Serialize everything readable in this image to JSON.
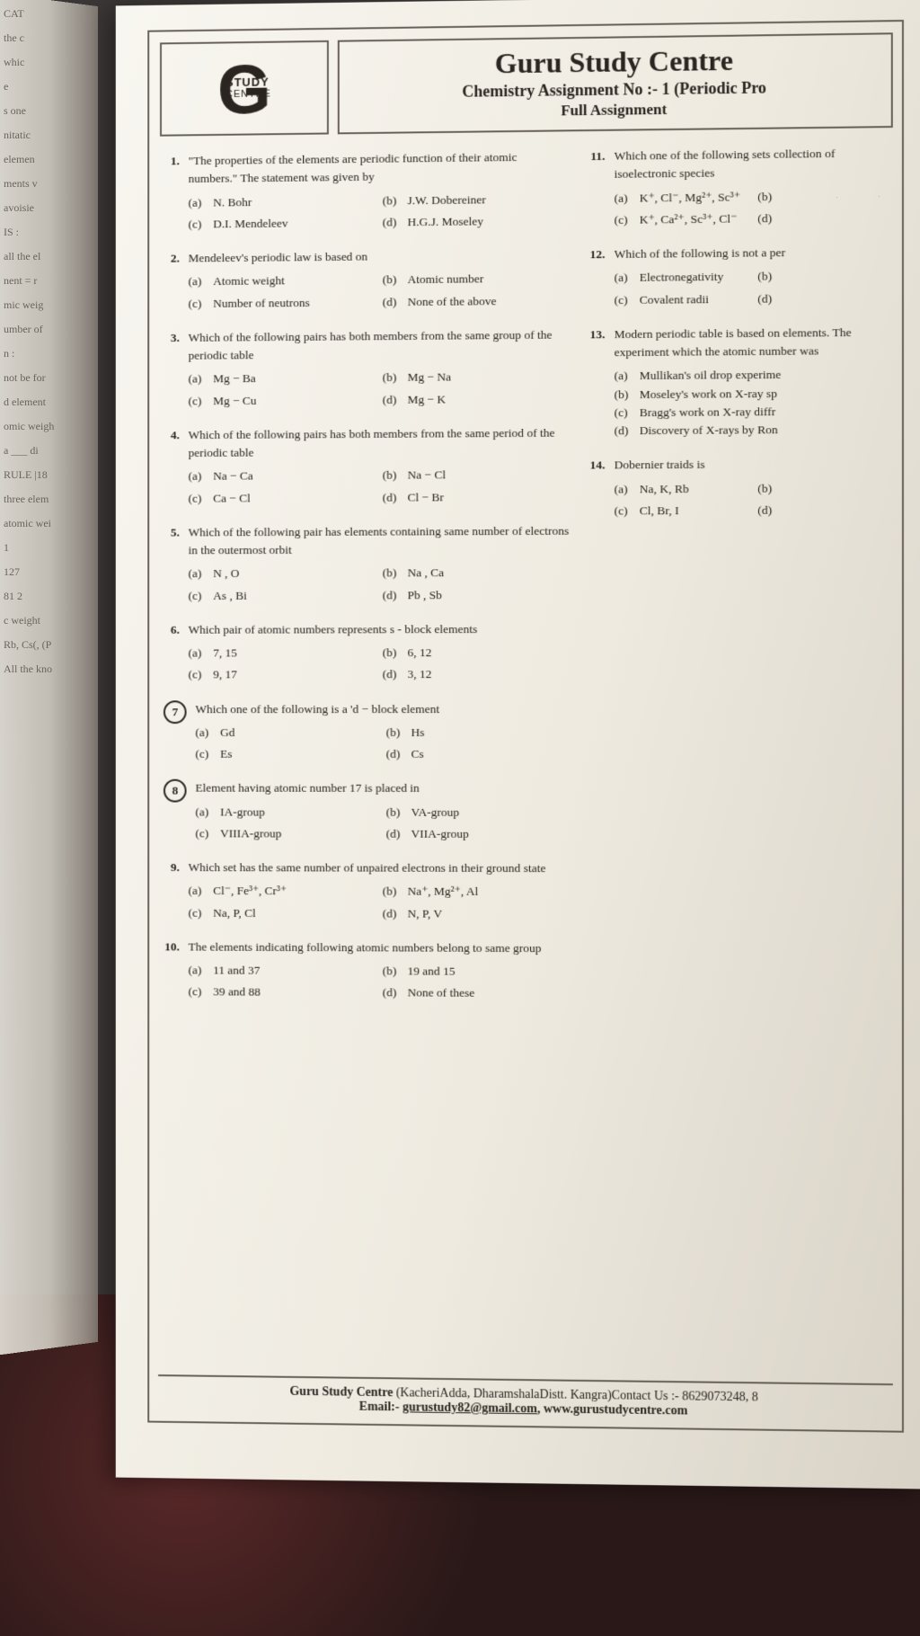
{
  "colors": {
    "paper": "#f8f6f0",
    "border": "#666058",
    "text": "#2a2520",
    "bg_dark": "#3a3635"
  },
  "logo": {
    "letter": "G",
    "line1": "STUDY",
    "line2": "CENTRE"
  },
  "header": {
    "title": "Guru Study Centre",
    "subtitle": "Chemistry Assignment No :- 1 (Periodic Pro",
    "subtitle2": "Full Assignment"
  },
  "left_questions": [
    {
      "n": "1.",
      "text": "\"The properties of the elements are periodic function of their atomic numbers.\" The statement was given by",
      "opts": [
        {
          "l": "(a)",
          "t": "N. Bohr"
        },
        {
          "l": "(b)",
          "t": "J.W. Dobereiner"
        },
        {
          "l": "(c)",
          "t": "D.I. Mendeleev"
        },
        {
          "l": "(d)",
          "t": "H.G.J. Moseley"
        }
      ]
    },
    {
      "n": "2.",
      "text": "Mendeleev's periodic law is based on",
      "opts": [
        {
          "l": "(a)",
          "t": "Atomic weight"
        },
        {
          "l": "(b)",
          "t": "Atomic number"
        },
        {
          "l": "(c)",
          "t": "Number of neutrons"
        },
        {
          "l": "(d)",
          "t": "None of the above"
        }
      ]
    },
    {
      "n": "3.",
      "text": "Which of the following pairs has both members from the same group of the periodic table",
      "opts": [
        {
          "l": "(a)",
          "t": "Mg − Ba"
        },
        {
          "l": "(b)",
          "t": "Mg − Na"
        },
        {
          "l": "(c)",
          "t": "Mg − Cu"
        },
        {
          "l": "(d)",
          "t": "Mg − K"
        }
      ]
    },
    {
      "n": "4.",
      "text": "Which of the following pairs has both members from the same period of the periodic table",
      "opts": [
        {
          "l": "(a)",
          "t": "Na − Ca"
        },
        {
          "l": "(b)",
          "t": "Na − Cl"
        },
        {
          "l": "(c)",
          "t": "Ca − Cl"
        },
        {
          "l": "(d)",
          "t": "Cl − Br"
        }
      ]
    },
    {
      "n": "5.",
      "text": "Which of the following pair has elements containing same number of electrons in the outermost orbit",
      "opts": [
        {
          "l": "(a)",
          "t": "N , O"
        },
        {
          "l": "(b)",
          "t": "Na , Ca"
        },
        {
          "l": "(c)",
          "t": "As , Bi"
        },
        {
          "l": "(d)",
          "t": "Pb , Sb"
        }
      ]
    },
    {
      "n": "6.",
      "text": "Which pair of atomic numbers represents s - block elements",
      "opts": [
        {
          "l": "(a)",
          "t": "7, 15"
        },
        {
          "l": "(b)",
          "t": "6, 12"
        },
        {
          "l": "(c)",
          "t": "9, 17"
        },
        {
          "l": "(d)",
          "t": "3, 12"
        }
      ]
    },
    {
      "n": "7.",
      "text": "Which one of the following is a 'd − block element",
      "circled": true,
      "opts": [
        {
          "l": "(a)",
          "t": "Gd"
        },
        {
          "l": "(b)",
          "t": "Hs"
        },
        {
          "l": "(c)",
          "t": "Es"
        },
        {
          "l": "(d)",
          "t": "Cs"
        }
      ]
    },
    {
      "n": "8.",
      "text": "Element having atomic number 17 is placed in",
      "circled": true,
      "opts": [
        {
          "l": "(a)",
          "t": "IA-group"
        },
        {
          "l": "(b)",
          "t": "VA-group"
        },
        {
          "l": "(c)",
          "t": "VIIIA-group"
        },
        {
          "l": "(d)",
          "t": "VIIA-group"
        }
      ]
    },
    {
      "n": "9.",
      "text": "Which set has the same number of unpaired electrons in their ground state",
      "opts": [
        {
          "l": "(a)",
          "t": "Cl⁻, Fe³⁺, Cr³⁺"
        },
        {
          "l": "(b)",
          "t": "Na⁺, Mg²⁺, Al"
        },
        {
          "l": "(c)",
          "t": "Na, P, Cl"
        },
        {
          "l": "(d)",
          "t": "N, P, V"
        }
      ]
    },
    {
      "n": "10.",
      "text": "The elements indicating following atomic numbers belong to same group",
      "opts": [
        {
          "l": "(a)",
          "t": "11 and 37"
        },
        {
          "l": "(b)",
          "t": "19 and 15"
        },
        {
          "l": "(c)",
          "t": "39 and 88"
        },
        {
          "l": "(d)",
          "t": "None of these"
        }
      ]
    }
  ],
  "right_questions": [
    {
      "n": "11.",
      "text": "Which one of the following sets collection of isoelectronic species",
      "opts": [
        {
          "l": "(a)",
          "t": "K⁺, Cl⁻, Mg²⁺, Sc³⁺"
        },
        {
          "l": "(b)",
          "t": ""
        },
        {
          "l": "(c)",
          "t": "K⁺, Ca²⁺, Sc³⁺, Cl⁻"
        },
        {
          "l": "(d)",
          "t": ""
        }
      ]
    },
    {
      "n": "12.",
      "text": "Which of the following is not a per",
      "opts": [
        {
          "l": "(a)",
          "t": "Electronegativity"
        },
        {
          "l": "(b)",
          "t": ""
        },
        {
          "l": "(c)",
          "t": "Covalent radii"
        },
        {
          "l": "(d)",
          "t": ""
        }
      ]
    },
    {
      "n": "13.",
      "text": "Modern periodic table is based on elements. The experiment which the atomic number was",
      "opts_single": [
        {
          "l": "(a)",
          "t": "Mullikan's oil drop experime"
        },
        {
          "l": "(b)",
          "t": "Moseley's work on X-ray sp"
        },
        {
          "l": "(c)",
          "t": "Bragg's work on X-ray diffr"
        },
        {
          "l": "(d)",
          "t": "Discovery of X-rays by Ron"
        }
      ]
    },
    {
      "n": "14.",
      "text": "Dobernier traids is",
      "opts": [
        {
          "l": "(a)",
          "t": "Na, K, Rb"
        },
        {
          "l": "(b)",
          "t": ""
        },
        {
          "l": "(c)",
          "t": "Cl, Br, I"
        },
        {
          "l": "(d)",
          "t": ""
        }
      ]
    }
  ],
  "footer": {
    "line1a": "Guru Study Centre ",
    "line1b": "(KacheriAdda, DharamshalaDistt. Kangra)Contact Us :- 8629073248, 8",
    "email_label": "Email:- ",
    "email": "gurustudy82@gmail.com",
    "sep": ", ",
    "site": "www.gurustudycentre.com"
  },
  "margin_fragments": [
    "CAT",
    "the c",
    "whic",
    "e",
    "s one",
    "nitatic",
    "elemen",
    "ments v",
    "avoisie",
    "IS :",
    "all the el",
    "nent = r",
    "mic weig",
    "umber of",
    "n :",
    "not be for",
    "d element",
    "omic weigh",
    "a ___ di",
    "RULE |18",
    "three elem",
    "atomic wei",
    "1",
    "127",
    "81 2",
    "c weight",
    "Rb, Cs(, (P",
    "All the kno"
  ]
}
